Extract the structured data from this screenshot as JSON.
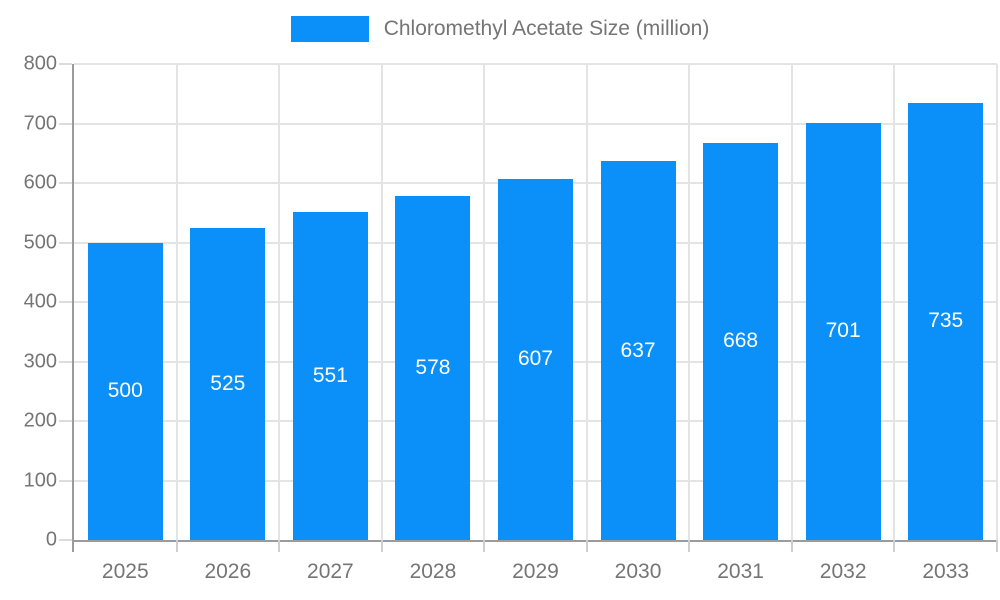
{
  "chart_data": {
    "type": "bar",
    "title": "Chloromethyl Acetate Size (million)",
    "categories": [
      "2025",
      "2026",
      "2027",
      "2028",
      "2029",
      "2030",
      "2031",
      "2032",
      "2033"
    ],
    "values": [
      500,
      525,
      551,
      578,
      607,
      637,
      668,
      701,
      735
    ],
    "xlabel": "",
    "ylabel": "",
    "ylim": [
      0,
      800
    ],
    "ytick_step": 100,
    "grid": true,
    "legend_position": "top",
    "value_labels": "inside-center",
    "colors": {
      "bar": "#0a90f8",
      "grid": "#e4e4e4",
      "axis": "#9b9b9b",
      "tick_text": "#757575",
      "value_text": "#ffffff",
      "background": "#ffffff"
    }
  },
  "legend": {
    "label": "Chloromethyl Acetate Size (million)"
  }
}
